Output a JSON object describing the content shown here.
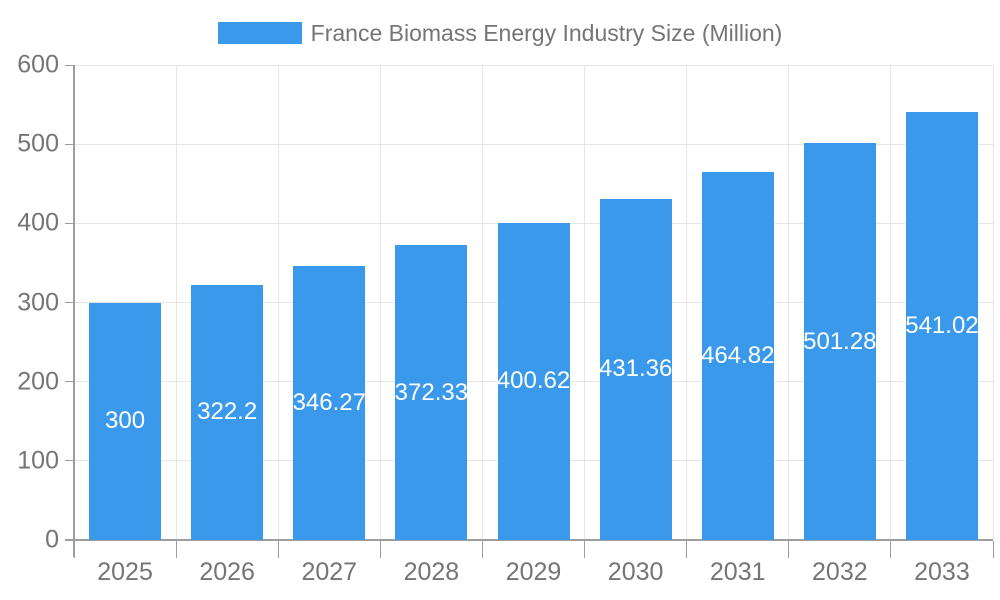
{
  "chart_data": {
    "type": "bar",
    "title": "France Biomass Energy Industry Size (Million)",
    "categories": [
      "2025",
      "2026",
      "2027",
      "2028",
      "2029",
      "2030",
      "2031",
      "2032",
      "2033"
    ],
    "values": [
      300,
      322.2,
      346.27,
      372.33,
      400.62,
      431.36,
      464.82,
      501.28,
      541.02
    ],
    "value_labels": [
      "300",
      "322.2",
      "346.27",
      "372.33",
      "400.62",
      "431.36",
      "464.82",
      "501.28",
      "541.02"
    ],
    "xlabel": "",
    "ylabel": "",
    "ylim": [
      0,
      600
    ],
    "ytick_interval": 100,
    "ytick_labels": [
      "0",
      "100",
      "200",
      "300",
      "400",
      "500",
      "600"
    ],
    "grid": true,
    "legend_position": "top",
    "value_label_position": "center-of-bar",
    "colors": {
      "bar": "#3B99EC",
      "grid": "#E6E6E6",
      "axis": "#9E9E9E",
      "tick_text": "#757575",
      "legend_text": "#757575",
      "value_label_text": "#FFFFFF",
      "background": "#FFFFFF"
    }
  }
}
